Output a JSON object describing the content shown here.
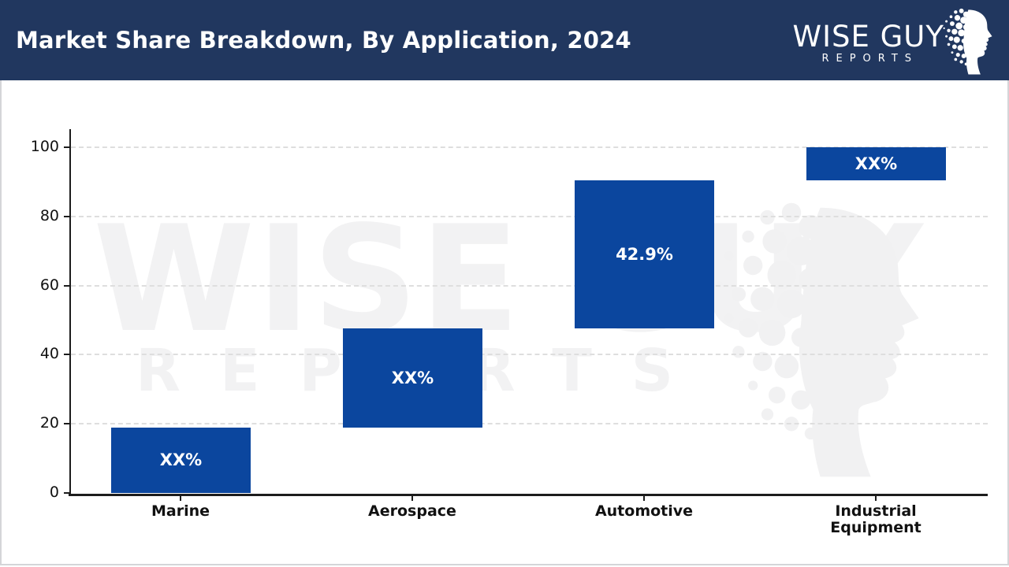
{
  "header": {
    "title": "Market Share Breakdown, By Application, 2024",
    "background_color": "#21375f",
    "logo": {
      "line1": "WISE GUY",
      "line2": "REPORTS"
    }
  },
  "watermark": {
    "line1": "WISE GUY",
    "line2": "REPORTS"
  },
  "chart_data": {
    "type": "bar",
    "subtype": "waterfall",
    "title": "Market Share Breakdown, By Application, 2024",
    "categories": [
      "Marine",
      "Aerospace",
      "Automotive",
      "Industrial Equipment"
    ],
    "segments": [
      {
        "category": "Marine",
        "start": 0,
        "end": 19,
        "value": 19,
        "label": "XX%"
      },
      {
        "category": "Aerospace",
        "start": 19,
        "end": 47.6,
        "value": 28.6,
        "label": "XX%"
      },
      {
        "category": "Automotive",
        "start": 47.6,
        "end": 90.5,
        "value": 42.9,
        "label": "42.9%"
      },
      {
        "category": "Industrial Equipment",
        "start": 90.5,
        "end": 100,
        "value": 9.5,
        "label": "XX%"
      }
    ],
    "xlabel": "",
    "ylabel": "",
    "ylim": [
      0,
      100
    ],
    "yticks": [
      0,
      20,
      40,
      60,
      80,
      100
    ],
    "grid": "horizontal-dashed",
    "legend": "none",
    "bar_color": "#0b469e",
    "bar_label_color": "#ffffff",
    "grid_color": "#dedede",
    "axis_color": "#1c1c1c"
  }
}
